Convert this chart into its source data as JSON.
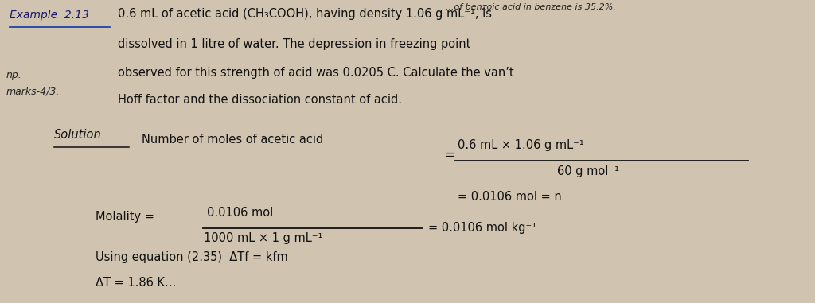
{
  "bg_color": "#d0c4b0",
  "top_right_text": "...of benzoic acid in benzene is 35.2%.",
  "example_label": "Example  2.13",
  "problem_line1": "0.6 mL of acetic acid (CH₃COOH), having density 1.06 g mL⁻¹, is",
  "problem_line2": "dissolved in 1 litre of water. The depression in freezing point",
  "problem_line3": "observed for this strength of acid was 0.0205 C. Calculate the van’t",
  "problem_line4": "Hoff factor and the dissociation constant of acid.",
  "margin_np": "np.",
  "margin_marks": "marks-4/3.",
  "solution_label": "Solution",
  "sol_left": "Number of moles of acetic acid",
  "sol_eq": "=",
  "sol_num": "0.6 mL × 1.06 g mL⁻¹",
  "sol_den": "60 g mol⁻¹",
  "sol_result": "= 0.0106 mol = n",
  "mol_label": "Molality =",
  "mol_num": "0.0106 mol",
  "mol_den": "1000 mL × 1 g mL⁻¹",
  "mol_result": "= 0.0106 mol kg⁻¹",
  "using_eq": "Using equation (2.35)  ΔTf = kfm",
  "delta_t_line": "ΔT = 1.86 K..."
}
